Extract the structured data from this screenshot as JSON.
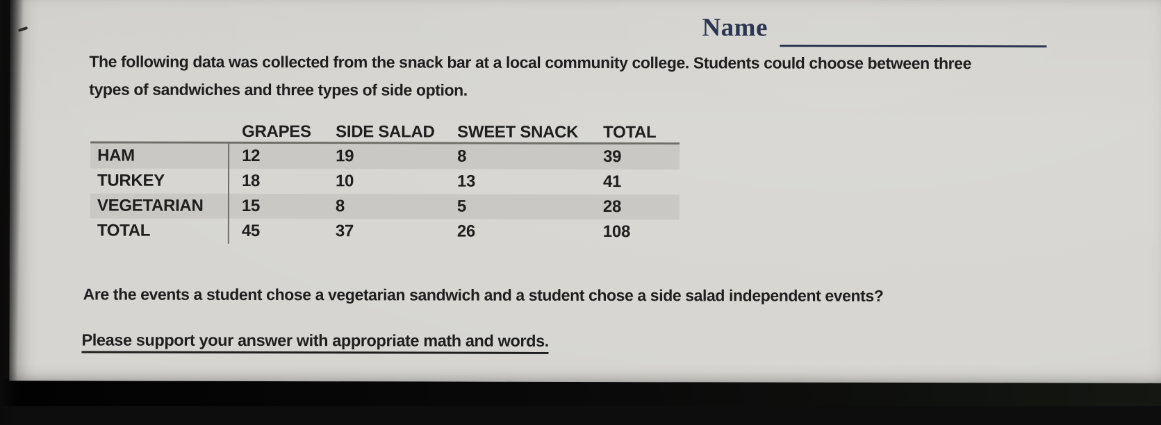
{
  "document": {
    "name_label": "Name",
    "intro_line1": "The following data was collected from the snack bar at a local community college. Students could choose between three",
    "intro_line2": "types of sandwiches and three types of side option.",
    "question": "Are the events a student chose a vegetarian sandwich and a student chose a side salad independent events?",
    "instruction": "Please support your answer with appropriate math and words."
  },
  "table": {
    "corner": "",
    "columns": [
      "GRAPES",
      "SIDE SALAD",
      "SWEET SNACK",
      "TOTAL"
    ],
    "rows": [
      {
        "label": "HAM",
        "values": [
          "12",
          "19",
          "8",
          "39"
        ]
      },
      {
        "label": "TURKEY",
        "values": [
          "18",
          "10",
          "13",
          "41"
        ]
      },
      {
        "label": "VEGETARIAN",
        "values": [
          "15",
          "8",
          "5",
          "28"
        ]
      },
      {
        "label": "TOTAL",
        "values": [
          "45",
          "37",
          "26",
          "108"
        ]
      }
    ]
  },
  "colors": {
    "paper": "#d6d5d1",
    "paper_dark": "#d1d0cc",
    "row_shade": "#c9c8c4",
    "ink": "#1e1e1e",
    "name_ink": "#2c3650",
    "rule": "#6f6e69",
    "backdrop": "#0d0d0d"
  }
}
